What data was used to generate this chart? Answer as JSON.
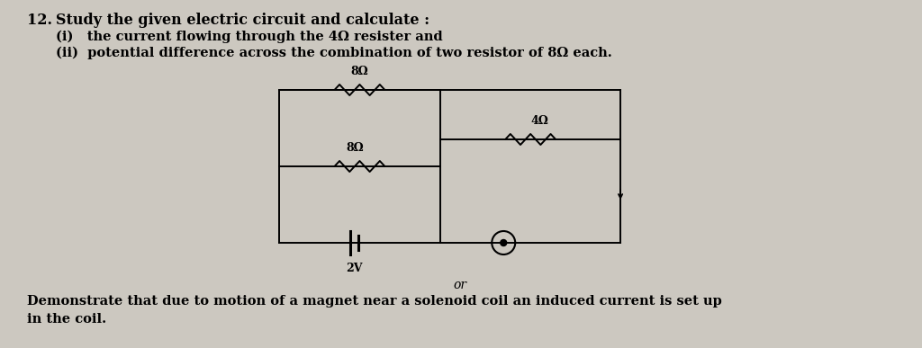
{
  "background_color": "#ccc8c0",
  "title_number": "12.",
  "title_text": "Study the given electric circuit and calculate :",
  "sub_i": "(i)   the current flowing through the 4Ω resister and",
  "sub_ii": "(ii)  potential difference across the combination of two resistor of 8Ω each.",
  "or_text": "or",
  "bottom_text_1": "Demonstrate that due to motion of a magnet near a solenoid coil an induced current is set up",
  "bottom_text_2": "in the coil.",
  "font_size_title": 11.5,
  "font_size_sub": 10.5,
  "font_size_or": 10,
  "font_size_bottom": 10.5,
  "font_size_circuit": 9,
  "circuit": {
    "label_8ohm_top": "8Ω",
    "label_8ohm_mid": "8Ω",
    "label_4ohm": "4Ω",
    "label_2v": "2V"
  }
}
